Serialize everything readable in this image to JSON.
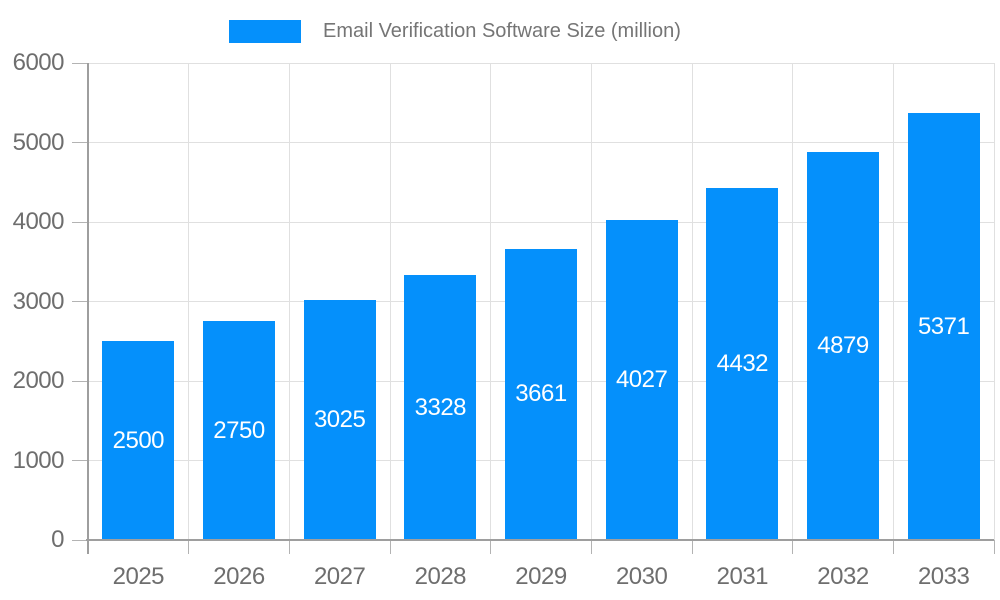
{
  "chart_data": {
    "type": "bar",
    "title": "Email Verification Software Size (million)",
    "legend": {
      "position": "top",
      "label": "Email Verification Software Size (million)"
    },
    "categories": [
      "2025",
      "2026",
      "2027",
      "2028",
      "2029",
      "2030",
      "2031",
      "2032",
      "2033"
    ],
    "series": [
      {
        "name": "Email Verification Software Size (million)",
        "values": [
          2500,
          2750,
          3025,
          3328,
          3661,
          4027,
          4432,
          4879,
          5371
        ]
      }
    ],
    "bar_labels": [
      "2500",
      "2750",
      "3025",
      "3328",
      "3661",
      "4027",
      "4432",
      "4879",
      "5371"
    ],
    "xlabel": "",
    "ylabel": "",
    "ylim": [
      0,
      6000
    ],
    "yticks": [
      0,
      1000,
      2000,
      3000,
      4000,
      5000,
      6000
    ],
    "ytick_labels": [
      "0",
      "1000",
      "2000",
      "3000",
      "4000",
      "5000",
      "6000"
    ],
    "grid": true,
    "colors": {
      "bar": "#0590FB",
      "grid": "#e0e0e0",
      "axis": "#9e9e9e",
      "tick": "#b3b3b3",
      "axis_label_text": "#6e6e6e",
      "legend_text": "#757575",
      "bar_value_text": "#ffffff",
      "background": "#ffffff"
    }
  }
}
